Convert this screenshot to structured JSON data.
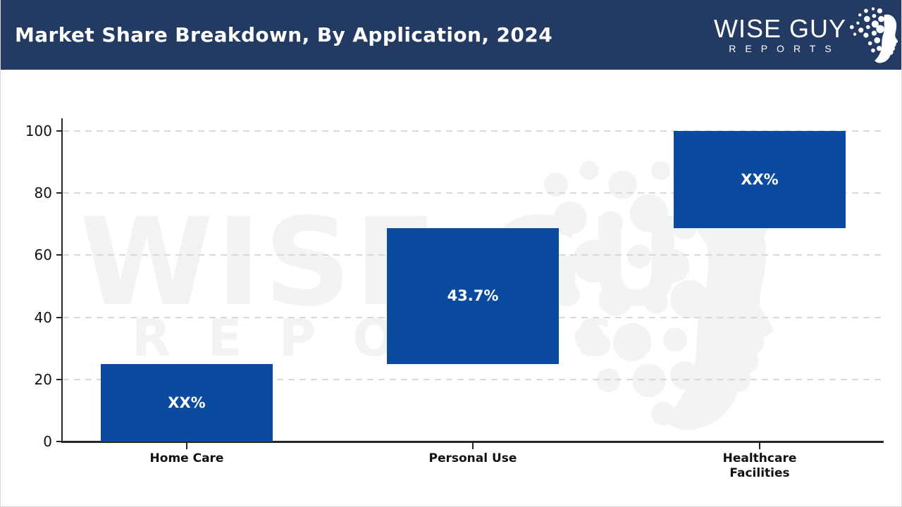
{
  "header": {
    "title": "Market Share Breakdown, By Application, 2024",
    "logo": {
      "line1": "WISE GUY",
      "line2": "REPORTS",
      "face_icon": "dotted-head-profile-icon"
    }
  },
  "watermark": {
    "line1": "WISE GUY",
    "line2": "REPORTS",
    "face_icon": "dotted-head-profile-watermark"
  },
  "colors": {
    "header_bg": "#233a63",
    "bar": "#0a4a9f",
    "grid": "#d9d9d9",
    "axis": "#262626",
    "bar_label": "#ffffff",
    "watermark": "#f2f3f5"
  },
  "chart_data": {
    "type": "bar",
    "subtype": "floating-segment (waterfall-style) market share bars",
    "title": "Market Share Breakdown, By Application, 2024",
    "categories": [
      "Home Care",
      "Personal Use",
      "Healthcare Facilities"
    ],
    "segments": [
      {
        "category": "Home Care",
        "start": 0,
        "end": 25,
        "label": "XX%"
      },
      {
        "category": "Personal Use",
        "start": 25,
        "end": 68.7,
        "label": "43.7%"
      },
      {
        "category": "Healthcare Facilities",
        "start": 68.7,
        "end": 100,
        "label": "XX%"
      }
    ],
    "xlabel": "",
    "ylabel": "",
    "ylim": [
      0,
      100
    ],
    "yticks": [
      0,
      20,
      40,
      60,
      80,
      100
    ],
    "grid": "horizontal dashed",
    "legend": "none"
  }
}
